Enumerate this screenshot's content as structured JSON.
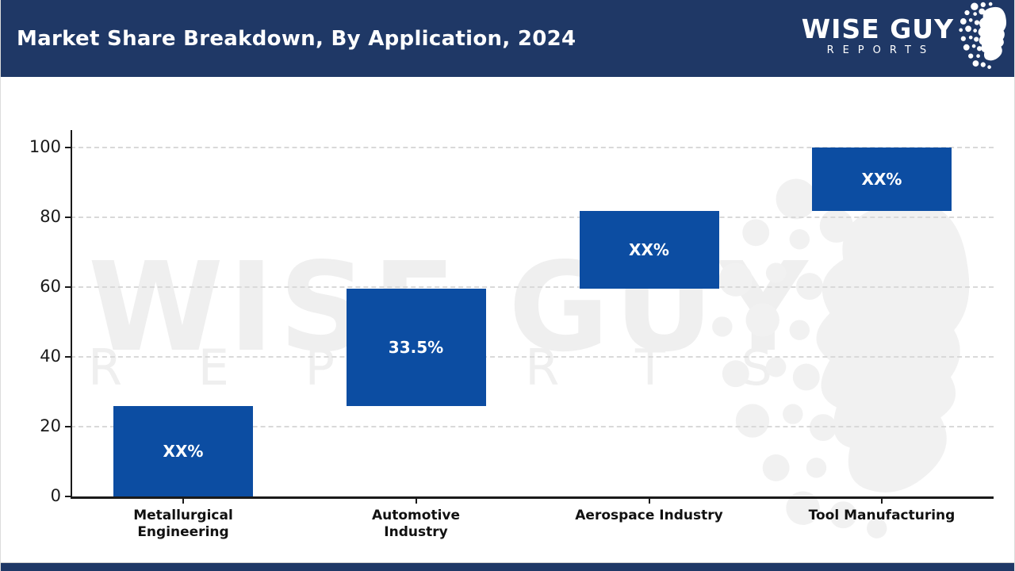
{
  "header": {
    "title": "Market Share Breakdown, By Application, 2024",
    "background_color": "#1f3866",
    "logo": {
      "line1": "WISE GUY",
      "line2": "REPORTS"
    }
  },
  "watermark": {
    "line1": "WISE GUY",
    "line2": "REPORTS"
  },
  "chart_data": {
    "type": "bar",
    "subtype": "waterfall",
    "title": "Market Share Breakdown, By Application, 2024",
    "ylabel": "",
    "xlabel": "",
    "ylim": [
      0,
      105
    ],
    "yticks": [
      0,
      20,
      40,
      60,
      80,
      100
    ],
    "grid": "horizontal-dashed",
    "legend": "none",
    "bar_color": "#0c4da2",
    "bar_label_color": "#ffffff",
    "categories": [
      "Metallurgical Engineering",
      "Automotive Industry",
      "Aerospace Industry",
      "Tool Manufacturing"
    ],
    "bars": [
      {
        "category": "Metallurgical Engineering",
        "category_lines": [
          "Metallurgical",
          "Engineering"
        ],
        "start": 0,
        "end": 26,
        "label": "XX%"
      },
      {
        "category": "Automotive Industry",
        "category_lines": [
          "Automotive",
          "Industry"
        ],
        "start": 26,
        "end": 59.5,
        "label": "33.5%"
      },
      {
        "category": "Aerospace Industry",
        "category_lines": [
          "Aerospace Industry"
        ],
        "start": 59.5,
        "end": 81.8,
        "label": "XX%"
      },
      {
        "category": "Tool Manufacturing",
        "category_lines": [
          "Tool Manufacturing"
        ],
        "start": 81.8,
        "end": 100,
        "label": "XX%"
      }
    ]
  }
}
